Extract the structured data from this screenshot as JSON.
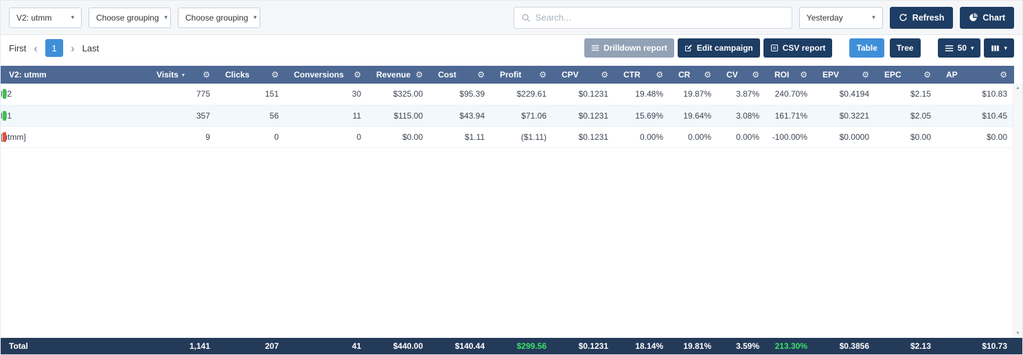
{
  "toolbar": {
    "campaign_select": "V2: utmm",
    "grouping_1": "Choose grouping",
    "grouping_2": "Choose grouping",
    "search_placeholder": "Search...",
    "date_range": "Yesterday",
    "refresh_label": "Refresh",
    "chart_label": "Chart"
  },
  "pagination": {
    "first": "First",
    "page": "1",
    "last": "Last"
  },
  "actions": {
    "drilldown": "Drilldown report",
    "edit_campaign": "Edit campaign",
    "csv": "CSV report",
    "table": "Table",
    "tree": "Tree",
    "page_size": "50"
  },
  "table": {
    "columns": [
      {
        "label": "V2: utmm",
        "gear": false,
        "sort": false
      },
      {
        "label": "Visits",
        "gear": true,
        "sort": true
      },
      {
        "label": "Clicks",
        "gear": true,
        "sort": false
      },
      {
        "label": "Conversions",
        "gear": true,
        "sort": false
      },
      {
        "label": "Revenue",
        "gear": true,
        "sort": false
      },
      {
        "label": "Cost",
        "gear": true,
        "sort": false
      },
      {
        "label": "Profit",
        "gear": true,
        "sort": false
      },
      {
        "label": "CPV",
        "gear": true,
        "sort": false
      },
      {
        "label": "CTR",
        "gear": true,
        "sort": false
      },
      {
        "label": "CR",
        "gear": true,
        "sort": false
      },
      {
        "label": "CV",
        "gear": true,
        "sort": false
      },
      {
        "label": "ROI",
        "gear": true,
        "sort": false
      },
      {
        "label": "EPV",
        "gear": true,
        "sort": false
      },
      {
        "label": "EPC",
        "gear": true,
        "sort": false
      },
      {
        "label": "AP",
        "gear": true,
        "sort": false
      }
    ],
    "rows": [
      {
        "name": "ld2",
        "status": "green",
        "values": [
          "775",
          "151",
          "30",
          "$325.00",
          "$95.39",
          "$229.61",
          "$0.1231",
          "19.48%",
          "19.87%",
          "3.87%",
          "240.70%",
          "$0.4194",
          "$2.15",
          "$10.83"
        ],
        "value_colors": {
          "5": "green",
          "10": "green"
        }
      },
      {
        "name": "ld1",
        "status": "green",
        "values": [
          "357",
          "56",
          "11",
          "$115.00",
          "$43.94",
          "$71.06",
          "$0.1231",
          "15.69%",
          "19.64%",
          "3.08%",
          "161.71%",
          "$0.3221",
          "$2.05",
          "$10.45"
        ],
        "value_colors": {
          "5": "green",
          "10": "green"
        }
      },
      {
        "name": "[utmm]",
        "status": "red",
        "values": [
          "9",
          "0",
          "0",
          "$0.00",
          "$1.11",
          "($1.11)",
          "$0.1231",
          "0.00%",
          "0.00%",
          "0.00%",
          "-100.00%",
          "$0.0000",
          "$0.00",
          "$0.00"
        ],
        "value_colors": {
          "5": "red",
          "10": "red"
        }
      }
    ],
    "total": {
      "label": "Total",
      "values": [
        "1,141",
        "207",
        "41",
        "$440.00",
        "$140.44",
        "$299.56",
        "$0.1231",
        "18.14%",
        "19.81%",
        "3.59%",
        "213.30%",
        "$0.3856",
        "$2.13",
        "$10.73"
      ],
      "value_colors": {
        "5": "green",
        "10": "green"
      }
    }
  },
  "colors": {
    "accent_blue": "#3f8fd8",
    "button_navy": "#1e3d64",
    "header_blue": "#4d6893",
    "footer_navy": "#243a59",
    "positive_green": "#28a745",
    "negative_red": "#e74c3c",
    "status_green": "#37c24c",
    "status_red": "#e74c3c",
    "disabled_button": "#92a2b5"
  }
}
